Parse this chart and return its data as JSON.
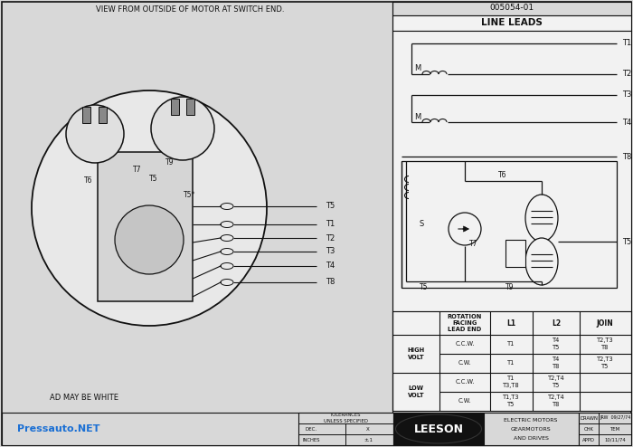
{
  "bg_color": "#d8d8d8",
  "panel_bg": "#f2f2f2",
  "line_color": "#111111",
  "title": "005054-01",
  "left_label": "VIEW FROM OUTSIDE OF MOTOR AT SWITCH END.",
  "bottom_left_label": "AD MAY BE WHITE",
  "watermark": "Pressauto.NET",
  "line_leads_title": "LINE LEADS",
  "table_headers": [
    "ROTATION\nFACING\nLEAD END",
    "L1",
    "L2",
    "JOIN"
  ],
  "leeson_text": [
    "ELECTRIC MOTORS",
    "GEARMOTORS",
    "AND DRIVES"
  ],
  "drawn_label": "DRAWN",
  "drawn_val": "JRW  09/27/74",
  "chk_label": "CHK",
  "chk_val": "TEM",
  "appd_label": "APPD",
  "appd_val": "10/11/74",
  "dec_label": "DEC.",
  "inches_label": "INCHES",
  "tol_line1": "TOLERANCES",
  "tol_line2": "UNLESS SPECIFIED",
  "x_label": "X",
  "x_val": "±.1"
}
